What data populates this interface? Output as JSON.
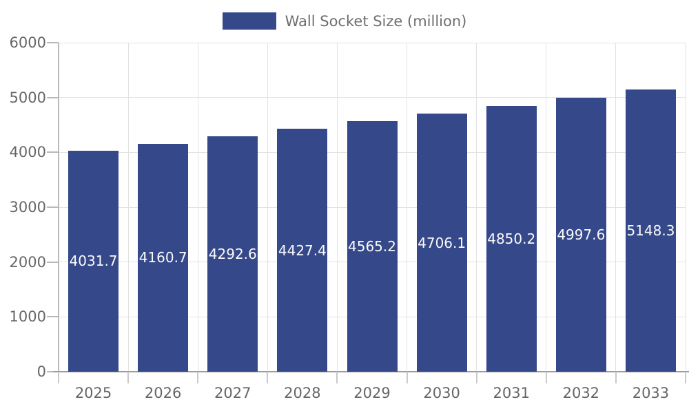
{
  "legend": {
    "label": "Wall Socket Size (million)"
  },
  "chart_data": {
    "type": "bar",
    "title": "",
    "xlabel": "",
    "ylabel": "",
    "categories": [
      "2025",
      "2026",
      "2027",
      "2028",
      "2029",
      "2030",
      "2031",
      "2032",
      "2033"
    ],
    "series": [
      {
        "name": "Wall Socket Size (million)",
        "values": [
          4031.7,
          4160.7,
          4292.6,
          4427.4,
          4565.2,
          4706.1,
          4850.2,
          4997.6,
          5148.3
        ]
      }
    ],
    "value_labels": [
      "4031.7",
      "4160.7",
      "4292.6",
      "4427.4",
      "4565.2",
      "4706.1",
      "4850.2",
      "4997.6",
      "5148.3"
    ],
    "ylim": [
      0,
      6000
    ],
    "yticks": [
      0,
      1000,
      2000,
      3000,
      4000,
      5000,
      6000
    ],
    "grid": true,
    "legend_position": "top-center",
    "colors": {
      "bar": "#35488A",
      "value_label": "#fafafa",
      "grid_line": "#e2e2e2",
      "y_axis_line": "#b8b8bd",
      "x_axis_line": "#9b9ba1",
      "tick_label": "#666666",
      "legend_text": "#6e6e6e"
    }
  }
}
